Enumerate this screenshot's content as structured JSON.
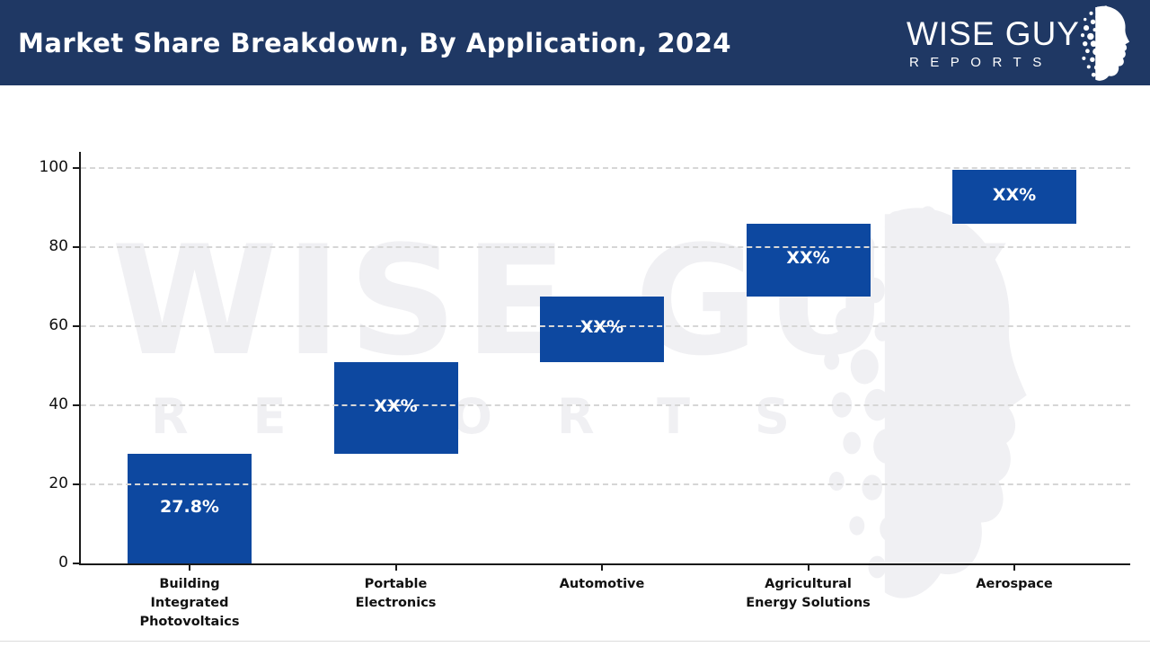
{
  "header": {
    "title": "Market Share Breakdown, By Application, 2024",
    "logo": {
      "line1": "WISE GUY",
      "line2": "REPORTS"
    }
  },
  "watermark": {
    "line1": "WISE GUY",
    "line2": "REPORTS"
  },
  "colors": {
    "header_bg": "#1f3864",
    "bar": "#0d48a0",
    "bar_label": "#ffffff",
    "grid": "#d6d6d6",
    "axis": "#1a1a1a",
    "watermark": "#f0f0f3"
  },
  "chart_data": {
    "type": "bar",
    "subtype": "waterfall",
    "title": "Market Share Breakdown, By Application, 2024",
    "xlabel": "",
    "ylabel": "",
    "ylim": [
      0,
      105
    ],
    "yticks": [
      0,
      20,
      40,
      60,
      80,
      100
    ],
    "grid": "horizontal-dashed",
    "legend": "none",
    "bars": [
      {
        "category": "Building\nIntegrated\nPhotovoltaics",
        "start": 0,
        "end": 27.8,
        "label": "27.8%"
      },
      {
        "category": "Portable\nElectronics",
        "start": 27.8,
        "end": 51.0,
        "label": "XX%"
      },
      {
        "category": "Automotive",
        "start": 51.0,
        "end": 67.6,
        "label": "XX%"
      },
      {
        "category": "Agricultural\nEnergy Solutions",
        "start": 67.6,
        "end": 85.9,
        "label": "XX%"
      },
      {
        "category": "Aerospace",
        "start": 85.9,
        "end": 99.6,
        "label": "XX%"
      }
    ]
  }
}
